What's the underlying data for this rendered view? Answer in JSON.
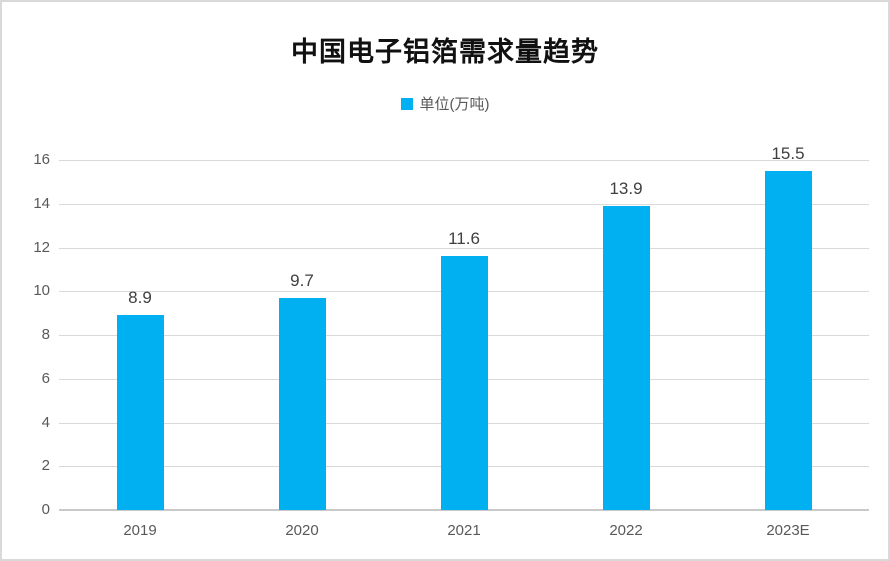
{
  "chart_data": {
    "type": "bar",
    "title": "中国电子铝箔需求量趋势",
    "legend": [
      {
        "label": "单位(万吨)",
        "color": "#00b0f0"
      }
    ],
    "legend_position": "top",
    "categories": [
      "2019",
      "2020",
      "2021",
      "2022",
      "2023E"
    ],
    "series": [
      {
        "name": "单位(万吨)",
        "values": [
          8.9,
          9.7,
          11.6,
          13.9,
          15.5
        ]
      }
    ],
    "data_labels": [
      "8.9",
      "9.7",
      "11.6",
      "13.9",
      "15.5"
    ],
    "xlabel": "",
    "ylabel": "",
    "ylim": [
      0,
      16
    ],
    "yticks": [
      0,
      2,
      4,
      6,
      8,
      10,
      12,
      14,
      16
    ],
    "grid": true,
    "colors": {
      "bar": "#00b0f0",
      "grid": "#d9d9d9",
      "axis": "#c9c9c9",
      "tick_text": "#595959",
      "value_text": "#3f3f3f",
      "title_text": "#111111",
      "legend_text": "#595959",
      "border": "#d9d9d9",
      "background": "#ffffff"
    }
  }
}
